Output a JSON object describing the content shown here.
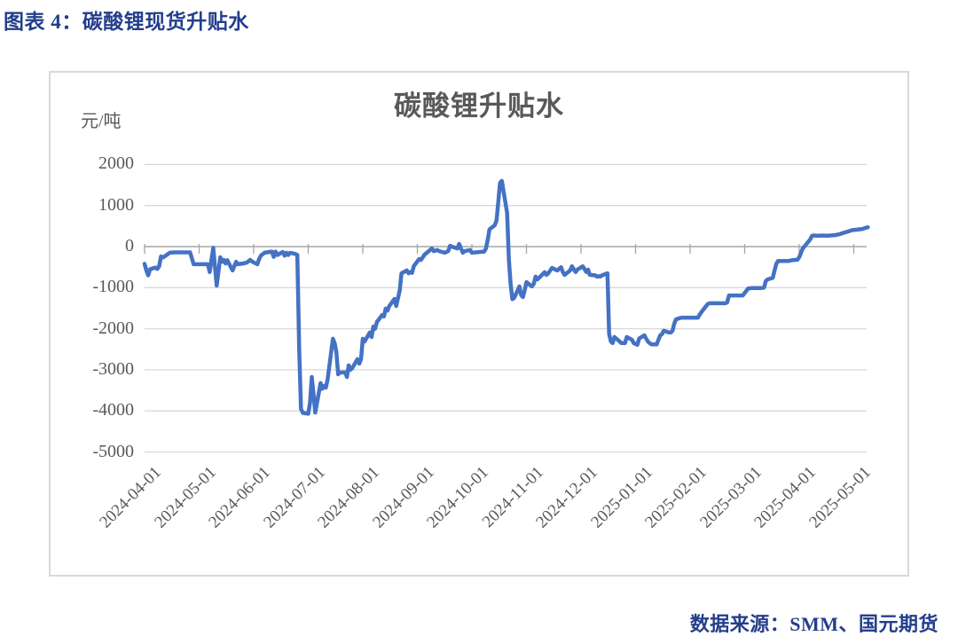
{
  "page": {
    "header": "图表 4：碳酸锂现货升贴水",
    "source": "数据来源：SMM、国元期货"
  },
  "colors": {
    "line": "#4472C4",
    "grid": "#d9d9d9",
    "axis": "#a6a6a6",
    "text_gray": "#595959",
    "navy": "#233e8b"
  },
  "chart_data": {
    "type": "line",
    "title": "碳酸锂升贴水",
    "y_unit": "元/吨",
    "ylim": [
      -5000,
      2000
    ],
    "grid": true,
    "legend": "none",
    "y_ticks": [
      2000,
      1000,
      0,
      -1000,
      -2000,
      -3000,
      -4000,
      -5000
    ],
    "x_ticks": [
      "2024-04-01",
      "2024-05-01",
      "2024-06-01",
      "2024-07-01",
      "2024-08-01",
      "2024-09-01",
      "2024-10-01",
      "2024-11-01",
      "2024-12-01",
      "2025-01-01",
      "2025-02-01",
      "2025-03-01",
      "2025-04-01",
      "2025-05-01"
    ],
    "series": [
      {
        "name": "碳酸锂升贴水",
        "points": [
          [
            "2024-04-01",
            -420
          ],
          [
            "2024-04-02",
            -580
          ],
          [
            "2024-04-03",
            -700
          ],
          [
            "2024-04-04",
            -550
          ],
          [
            "2024-04-07",
            -510
          ],
          [
            "2024-04-08",
            -545
          ],
          [
            "2024-04-09",
            -480
          ],
          [
            "2024-04-10",
            -240
          ],
          [
            "2024-04-11",
            -265
          ],
          [
            "2024-04-12",
            -240
          ],
          [
            "2024-04-15",
            -145
          ],
          [
            "2024-04-18",
            -140
          ],
          [
            "2024-04-22",
            -140
          ],
          [
            "2024-04-25",
            -140
          ],
          [
            "2024-04-26",
            -140
          ],
          [
            "2024-04-28",
            -430
          ],
          [
            "2024-04-30",
            -430
          ],
          [
            "2024-05-06",
            -430
          ],
          [
            "2024-05-07",
            -620
          ],
          [
            "2024-05-09",
            -30
          ],
          [
            "2024-05-10",
            -500
          ],
          [
            "2024-05-11",
            -950
          ],
          [
            "2024-05-13",
            -260
          ],
          [
            "2024-05-14",
            -370
          ],
          [
            "2024-05-15",
            -325
          ],
          [
            "2024-05-16",
            -410
          ],
          [
            "2024-05-17",
            -330
          ],
          [
            "2024-05-20",
            -580
          ],
          [
            "2024-05-22",
            -370
          ],
          [
            "2024-05-23",
            -430
          ],
          [
            "2024-05-26",
            -410
          ],
          [
            "2024-05-28",
            -390
          ],
          [
            "2024-05-30",
            -325
          ],
          [
            "2024-05-31",
            -360
          ],
          [
            "2024-06-03",
            -430
          ],
          [
            "2024-06-04",
            -300
          ],
          [
            "2024-06-05",
            -215
          ],
          [
            "2024-06-07",
            -150
          ],
          [
            "2024-06-11",
            -120
          ],
          [
            "2024-06-12",
            -250
          ],
          [
            "2024-06-13",
            -120
          ],
          [
            "2024-06-14",
            -205
          ],
          [
            "2024-06-17",
            -130
          ],
          [
            "2024-06-18",
            -220
          ],
          [
            "2024-06-19",
            -150
          ],
          [
            "2024-06-20",
            -205
          ],
          [
            "2024-06-21",
            -150
          ],
          [
            "2024-06-24",
            -180
          ],
          [
            "2024-06-25",
            -205
          ],
          [
            "2024-06-26",
            -2500
          ],
          [
            "2024-06-27",
            -3950
          ],
          [
            "2024-06-28",
            -4050
          ],
          [
            "2024-07-01",
            -4070
          ],
          [
            "2024-07-02",
            -3800
          ],
          [
            "2024-07-03",
            -3175
          ],
          [
            "2024-07-04",
            -3600
          ],
          [
            "2024-07-05",
            -4040
          ],
          [
            "2024-07-08",
            -3325
          ],
          [
            "2024-07-09",
            -3460
          ],
          [
            "2024-07-10",
            -3390
          ],
          [
            "2024-07-11",
            -3435
          ],
          [
            "2024-07-12",
            -3240
          ],
          [
            "2024-07-15",
            -2245
          ],
          [
            "2024-07-16",
            -2350
          ],
          [
            "2024-07-17",
            -2570
          ],
          [
            "2024-07-18",
            -3110
          ],
          [
            "2024-07-19",
            -3065
          ],
          [
            "2024-07-22",
            -3065
          ],
          [
            "2024-07-23",
            -3175
          ],
          [
            "2024-07-24",
            -2890
          ],
          [
            "2024-07-25",
            -3000
          ],
          [
            "2024-07-26",
            -2960
          ],
          [
            "2024-07-29",
            -2740
          ],
          [
            "2024-07-30",
            -2850
          ],
          [
            "2024-07-31",
            -2740
          ],
          [
            "2024-08-01",
            -2245
          ],
          [
            "2024-08-02",
            -2310
          ],
          [
            "2024-08-05",
            -2090
          ],
          [
            "2024-08-06",
            -2200
          ],
          [
            "2024-08-07",
            -1945
          ],
          [
            "2024-08-08",
            -2000
          ],
          [
            "2024-08-09",
            -1835
          ],
          [
            "2024-08-12",
            -1665
          ],
          [
            "2024-08-13",
            -1700
          ],
          [
            "2024-08-14",
            -1510
          ],
          [
            "2024-08-15",
            -1560
          ],
          [
            "2024-08-16",
            -1450
          ],
          [
            "2024-08-19",
            -1275
          ],
          [
            "2024-08-20",
            -1445
          ],
          [
            "2024-08-22",
            -1060
          ],
          [
            "2024-08-23",
            -650
          ],
          [
            "2024-08-26",
            -580
          ],
          [
            "2024-08-27",
            -650
          ],
          [
            "2024-08-28",
            -620
          ],
          [
            "2024-08-29",
            -640
          ],
          [
            "2024-08-30",
            -475
          ],
          [
            "2024-09-02",
            -300
          ],
          [
            "2024-09-03",
            -325
          ],
          [
            "2024-09-05",
            -195
          ],
          [
            "2024-09-09",
            -45
          ],
          [
            "2024-09-10",
            -110
          ],
          [
            "2024-09-12",
            -85
          ],
          [
            "2024-09-13",
            -110
          ],
          [
            "2024-09-16",
            -150
          ],
          [
            "2024-09-18",
            -110
          ],
          [
            "2024-09-19",
            20
          ],
          [
            "2024-09-20",
            0
          ],
          [
            "2024-09-23",
            -45
          ],
          [
            "2024-09-24",
            65
          ],
          [
            "2024-09-25",
            -45
          ],
          [
            "2024-09-26",
            -150
          ],
          [
            "2024-09-27",
            -110
          ],
          [
            "2024-09-30",
            -85
          ],
          [
            "2024-10-01",
            -150
          ],
          [
            "2024-10-08",
            -120
          ],
          [
            "2024-10-09",
            -40
          ],
          [
            "2024-10-10",
            170
          ],
          [
            "2024-10-11",
            420
          ],
          [
            "2024-10-14",
            520
          ],
          [
            "2024-10-15",
            640
          ],
          [
            "2024-10-16",
            1100
          ],
          [
            "2024-10-17",
            1550
          ],
          [
            "2024-10-18",
            1600
          ],
          [
            "2024-10-21",
            820
          ],
          [
            "2024-10-22",
            -320
          ],
          [
            "2024-10-23",
            -900
          ],
          [
            "2024-10-24",
            -1280
          ],
          [
            "2024-10-25",
            -1250
          ],
          [
            "2024-10-28",
            -970
          ],
          [
            "2024-10-29",
            -1180
          ],
          [
            "2024-10-30",
            -1230
          ],
          [
            "2024-10-31",
            -1060
          ],
          [
            "2024-11-01",
            -865
          ],
          [
            "2024-11-04",
            -970
          ],
          [
            "2024-11-05",
            -910
          ],
          [
            "2024-11-06",
            -730
          ],
          [
            "2024-11-07",
            -800
          ],
          [
            "2024-11-08",
            -755
          ],
          [
            "2024-11-11",
            -625
          ],
          [
            "2024-11-12",
            -690
          ],
          [
            "2024-11-13",
            -650
          ],
          [
            "2024-11-15",
            -520
          ],
          [
            "2024-11-18",
            -580
          ],
          [
            "2024-11-19",
            -540
          ],
          [
            "2024-11-20",
            -500
          ],
          [
            "2024-11-21",
            -620
          ],
          [
            "2024-11-22",
            -690
          ],
          [
            "2024-11-25",
            -580
          ],
          [
            "2024-11-26",
            -480
          ],
          [
            "2024-11-27",
            -550
          ],
          [
            "2024-11-28",
            -620
          ],
          [
            "2024-11-29",
            -560
          ],
          [
            "2024-12-02",
            -480
          ],
          [
            "2024-12-03",
            -550
          ],
          [
            "2024-12-04",
            -620
          ],
          [
            "2024-12-05",
            -560
          ],
          [
            "2024-12-06",
            -690
          ],
          [
            "2024-12-09",
            -700
          ],
          [
            "2024-12-10",
            -730
          ],
          [
            "2024-12-11",
            -720
          ],
          [
            "2024-12-12",
            -730
          ],
          [
            "2024-12-13",
            -700
          ],
          [
            "2024-12-16",
            -650
          ],
          [
            "2024-12-17",
            -2130
          ],
          [
            "2024-12-18",
            -2310
          ],
          [
            "2024-12-19",
            -2350
          ],
          [
            "2024-12-20",
            -2200
          ],
          [
            "2024-12-23",
            -2310
          ],
          [
            "2024-12-24",
            -2350
          ],
          [
            "2024-12-25",
            -2350
          ],
          [
            "2024-12-26",
            -2350
          ],
          [
            "2024-12-27",
            -2200
          ],
          [
            "2024-12-30",
            -2270
          ],
          [
            "2024-12-31",
            -2350
          ],
          [
            "2025-01-02",
            -2390
          ],
          [
            "2025-01-03",
            -2240
          ],
          [
            "2025-01-06",
            -2160
          ],
          [
            "2025-01-07",
            -2240
          ],
          [
            "2025-01-08",
            -2310
          ],
          [
            "2025-01-09",
            -2350
          ],
          [
            "2025-01-10",
            -2380
          ],
          [
            "2025-01-13",
            -2380
          ],
          [
            "2025-01-14",
            -2270
          ],
          [
            "2025-01-15",
            -2160
          ],
          [
            "2025-01-16",
            -2130
          ],
          [
            "2025-01-17",
            -2050
          ],
          [
            "2025-01-20",
            -2090
          ],
          [
            "2025-01-21",
            -2090
          ],
          [
            "2025-01-22",
            -2050
          ],
          [
            "2025-01-23",
            -1880
          ],
          [
            "2025-01-24",
            -1770
          ],
          [
            "2025-01-27",
            -1730
          ],
          [
            "2025-02-05",
            -1730
          ],
          [
            "2025-02-06",
            -1650
          ],
          [
            "2025-02-07",
            -1580
          ],
          [
            "2025-02-10",
            -1400
          ],
          [
            "2025-02-11",
            -1380
          ],
          [
            "2025-02-14",
            -1380
          ],
          [
            "2025-02-17",
            -1380
          ],
          [
            "2025-02-19",
            -1380
          ],
          [
            "2025-02-20",
            -1360
          ],
          [
            "2025-02-21",
            -1190
          ],
          [
            "2025-02-24",
            -1190
          ],
          [
            "2025-02-26",
            -1190
          ],
          [
            "2025-02-28",
            -1190
          ],
          [
            "2025-03-03",
            -1020
          ],
          [
            "2025-03-05",
            -1010
          ],
          [
            "2025-03-07",
            -1010
          ],
          [
            "2025-03-10",
            -1010
          ],
          [
            "2025-03-12",
            -1000
          ],
          [
            "2025-03-13",
            -840
          ],
          [
            "2025-03-14",
            -800
          ],
          [
            "2025-03-17",
            -760
          ],
          [
            "2025-03-18",
            -580
          ],
          [
            "2025-03-19",
            -420
          ],
          [
            "2025-03-20",
            -350
          ],
          [
            "2025-03-24",
            -350
          ],
          [
            "2025-03-26",
            -350
          ],
          [
            "2025-03-28",
            -330
          ],
          [
            "2025-03-31",
            -320
          ],
          [
            "2025-04-01",
            -260
          ],
          [
            "2025-04-02",
            -150
          ],
          [
            "2025-04-03",
            -40
          ],
          [
            "2025-04-07",
            170
          ],
          [
            "2025-04-08",
            260
          ],
          [
            "2025-04-09",
            270
          ],
          [
            "2025-04-11",
            265
          ],
          [
            "2025-04-14",
            270
          ],
          [
            "2025-04-16",
            265
          ],
          [
            "2025-04-18",
            270
          ],
          [
            "2025-04-21",
            280
          ],
          [
            "2025-04-23",
            300
          ],
          [
            "2025-04-25",
            330
          ],
          [
            "2025-04-28",
            370
          ],
          [
            "2025-04-30",
            400
          ],
          [
            "2025-05-06",
            430
          ],
          [
            "2025-05-07",
            445
          ],
          [
            "2025-05-08",
            460
          ],
          [
            "2025-05-09",
            470
          ]
        ]
      }
    ]
  }
}
